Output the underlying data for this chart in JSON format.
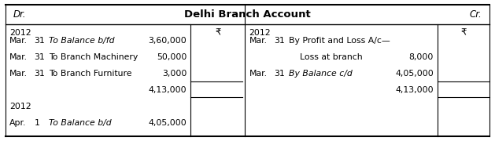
{
  "title": "Delhi Branch Account",
  "dr_label": "Dr.",
  "cr_label": "Cr.",
  "background_color": "#ffffff",
  "text_color": "#000000",
  "figsize": [
    6.29,
    1.8
  ],
  "dpi": 100,
  "left_rows": [
    {
      "col1": "2012",
      "col2": "",
      "col3": "",
      "col4": ""
    },
    {
      "col1": "Mar.",
      "col2": "31",
      "col3": "To Balance b/fd",
      "col4": "3,60,000",
      "italic_col3": true
    },
    {
      "col1": "Mar.",
      "col2": "31",
      "col3": "To Branch Machinery",
      "col4": "50,000"
    },
    {
      "col1": "Mar.",
      "col2": "31",
      "col3": "To Branch Furniture",
      "col4": "3,000"
    },
    {
      "col1": "",
      "col2": "",
      "col3": "",
      "col4": "4,13,000",
      "total": true
    },
    {
      "col1": "2012",
      "col2": "",
      "col3": "",
      "col4": ""
    },
    {
      "col1": "Apr.",
      "col2": "1",
      "col3": "To Balance b/d",
      "col4": "4,05,000",
      "italic_col3": true
    }
  ],
  "right_rows": [
    {
      "col1": "2012",
      "col2": "",
      "col3": "",
      "col4": "₹"
    },
    {
      "col1": "Mar.",
      "col2": "31",
      "col3": "By Profit and Loss A/c—",
      "col4": ""
    },
    {
      "col1": "",
      "col2": "",
      "col3": "    Loss at branch",
      "col4": "8,000"
    },
    {
      "col1": "Mar.",
      "col2": "31",
      "col3": "By Balance c/d",
      "col4": "4,05,000",
      "italic_col3": true
    },
    {
      "col1": "",
      "col2": "",
      "col3": "",
      "col4": "4,13,000",
      "total": true
    },
    {
      "col1": "",
      "col2": "",
      "col3": "",
      "col4": ""
    },
    {
      "col1": "",
      "col2": "",
      "col3": "",
      "col4": ""
    }
  ],
  "rupee_symbol": "₹"
}
